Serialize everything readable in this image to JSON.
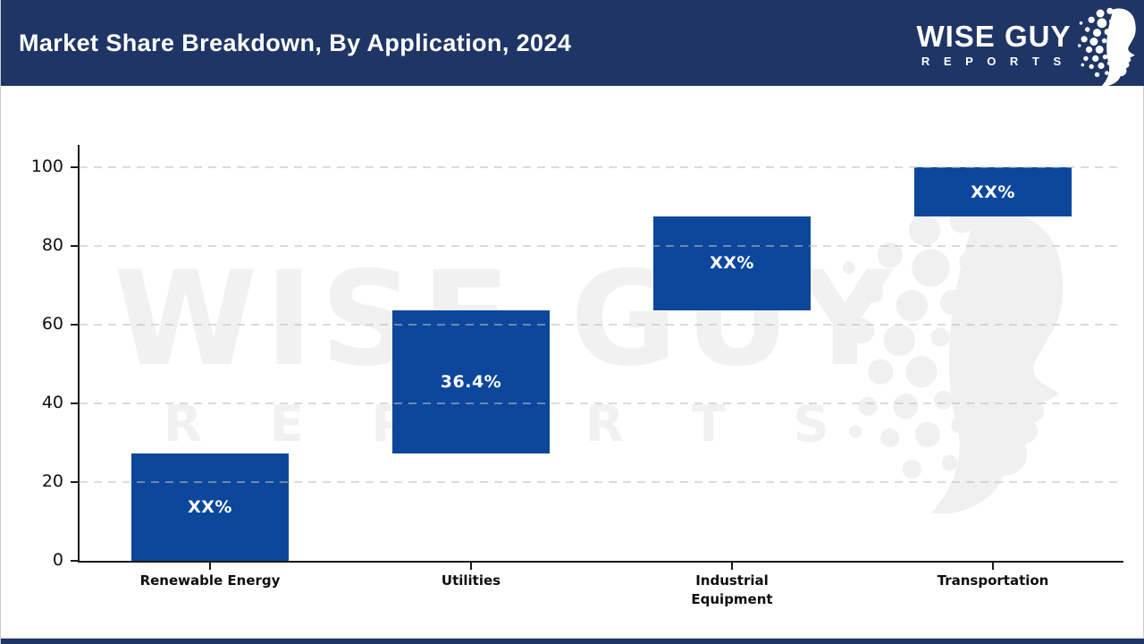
{
  "header": {
    "title": "Market Share Breakdown, By Application, 2024",
    "logo": {
      "line1": "WISE GUY",
      "line2": "R E P O R T S"
    }
  },
  "watermark": {
    "line1": "WISE GUY",
    "line2": "R E P O R T S"
  },
  "colors": {
    "header_bg": "#1f3565",
    "footer_bg": "#1f3565",
    "bar": "#0c479c",
    "grid": "rgba(190,190,190,0.55)",
    "axis": "#1a1a1a",
    "watermark": "#f1f1f2",
    "bar_label": "#ffffff"
  },
  "chart_data": {
    "type": "bar",
    "subtype": "waterfall-stacked-segments",
    "title": "Market Share Breakdown, By Application, 2024",
    "categories": [
      "Renewable Energy",
      "Utilities",
      "Industrial Equipment",
      "Transportation"
    ],
    "category_label_lines": [
      [
        "Renewable Energy"
      ],
      [
        "Utilities"
      ],
      [
        "Industrial",
        "Equipment"
      ],
      [
        "Transportation"
      ]
    ],
    "segments": [
      {
        "category": "Renewable Energy",
        "start": 0,
        "end": 27.3,
        "value": 27.3,
        "label": "XX%"
      },
      {
        "category": "Utilities",
        "start": 27.3,
        "end": 63.7,
        "value": 36.4,
        "label": "36.4%"
      },
      {
        "category": "Industrial Equipment",
        "start": 63.7,
        "end": 87.5,
        "value": 23.8,
        "label": "XX%"
      },
      {
        "category": "Transportation",
        "start": 87.5,
        "end": 100,
        "value": 12.5,
        "label": "XX%"
      }
    ],
    "xlabel": "",
    "ylabel": "",
    "ylim": [
      0,
      100
    ],
    "yticks": [
      0,
      20,
      40,
      60,
      80,
      100
    ],
    "grid": "horizontal dashed, drawn above bars",
    "legend": "none"
  }
}
